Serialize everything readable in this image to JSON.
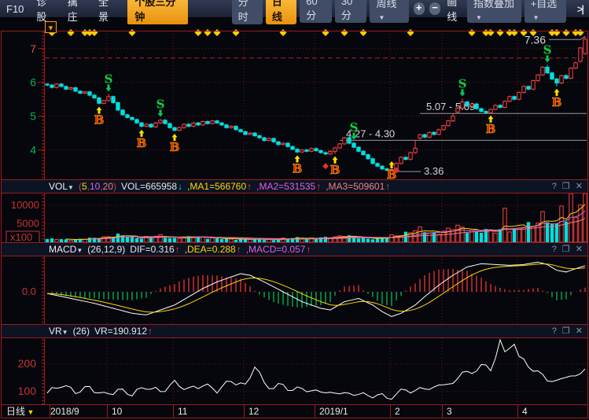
{
  "toolbar": {
    "items_left": [
      "F10",
      "诊股",
      "擒庄",
      "全景"
    ],
    "highlight_button": "个股三分钟",
    "period_buttons": [
      "分时",
      "日线",
      "60分",
      "30分",
      "周线"
    ],
    "active_period": "日线",
    "zoom_buttons": [
      "+",
      "−"
    ],
    "items_right": [
      "画线",
      "指数叠加",
      "+自选"
    ],
    "collapse_icon": ">|"
  },
  "colors": {
    "up": "#ff4242",
    "down": "#00e0e0",
    "ma1": "#ffd700",
    "ma2": "#e060e0",
    "ma3": "#f08080",
    "accent_orange": "#f0a020",
    "grid": "#7a1212",
    "border": "#9b1c1c",
    "axis_red": "#c83232",
    "axis_green": "#00b850",
    "text": "#e8e8e8",
    "dim_red": "#c84040",
    "gray_line": "#999999",
    "signal_buy": "#e03000",
    "signal_buy_edge": "#ffaa00",
    "signal_sell": "#22cc44",
    "diamond": "#ffcc00",
    "white_line": "#ffffff",
    "yellow_line": "#ffd700",
    "hist_up": "#e03030",
    "hist_down": "#00b050"
  },
  "panes": {
    "window_buttons": [
      "?",
      "❐",
      "✕"
    ],
    "vol": {
      "title": "VOL",
      "dropdown": "▼",
      "params_tokens": [
        [
          "(",
          "dim_red"
        ],
        [
          "5",
          "ma1"
        ],
        [
          ",",
          "dim_red"
        ],
        [
          "10",
          "ma2"
        ],
        [
          ",",
          "dim_red"
        ],
        [
          "20",
          "ma3"
        ],
        [
          ")",
          "dim_red"
        ]
      ],
      "fields": [
        {
          "text": "VOL=665958",
          "color": "text",
          "arrow": "down"
        },
        {
          "text": ",MA1=566760",
          "color": "ma1",
          "arrow": "up"
        },
        {
          "text": ",MA2=531535",
          "color": "ma2",
          "arrow": "up"
        },
        {
          "text": ",MA3=509601",
          "color": "ma3",
          "arrow": "up"
        }
      ],
      "y_ticks": [
        "10000",
        "5000"
      ],
      "unit_label": "x100"
    },
    "macd": {
      "title": "MACD",
      "dropdown": "▼",
      "params_tokens": [
        [
          "(26,12,9)",
          "text"
        ]
      ],
      "fields": [
        {
          "text": "DIF=0.316",
          "color": "text",
          "arrow": "up"
        },
        {
          "text": ",DEA=0.288",
          "color": "ma1",
          "arrow": "up"
        },
        {
          "text": ",MACD=0.057",
          "color": "ma2",
          "arrow": "up"
        }
      ],
      "y_ticks": [
        "0.0"
      ]
    },
    "vr": {
      "title": "VR",
      "dropdown": "▼",
      "params_tokens": [
        [
          "(26)",
          "text"
        ]
      ],
      "fields": [
        {
          "text": "VR=190.912",
          "color": "text",
          "arrow": "up"
        }
      ],
      "y_ticks": [
        "200",
        "100"
      ]
    }
  },
  "x_axis": {
    "left_label": "日线",
    "left_arrow": "▼",
    "labels": [
      "2018/9",
      "10",
      "11",
      "12",
      "2019/1",
      "2",
      "3",
      "4"
    ],
    "label_days": [
      0,
      13,
      27,
      42,
      57,
      73,
      84,
      100
    ]
  },
  "chart_data": [
    {
      "type": "candlestick",
      "panel": "main",
      "title": "daily K-line",
      "y_tick_values": [
        7,
        6,
        5,
        4
      ],
      "y_tick_colors": [
        "#e05050",
        "#00b850",
        "#00b850",
        "#00b850"
      ],
      "ylim": [
        3.13,
        7.53
      ],
      "dashed_level": 6.72,
      "closes": [
        5.92,
        5.85,
        5.95,
        5.88,
        5.8,
        5.84,
        5.74,
        5.68,
        5.72,
        5.62,
        5.54,
        5.38,
        5.46,
        5.58,
        5.4,
        5.18,
        5.04,
        4.96,
        4.9,
        4.8,
        4.7,
        4.76,
        4.68,
        4.8,
        4.88,
        4.78,
        4.66,
        4.58,
        4.66,
        4.76,
        4.7,
        4.8,
        4.74,
        4.84,
        4.78,
        4.86,
        4.8,
        4.74,
        4.66,
        4.7,
        4.6,
        4.54,
        4.46,
        4.5,
        4.42,
        4.36,
        4.28,
        4.34,
        4.24,
        4.16,
        4.2,
        4.1,
        4.02,
        3.94,
        4.0,
        3.96,
        4.04,
        3.98,
        3.92,
        3.88,
        3.96,
        4.06,
        4.18,
        4.36,
        4.2,
        4.08,
        3.96,
        3.86,
        3.74,
        3.6,
        3.52,
        3.44,
        3.4,
        3.42,
        3.6,
        3.78,
        3.72,
        3.92,
        4.05,
        4.45,
        4.38,
        4.52,
        4.46,
        4.6,
        4.72,
        4.86,
        5.0,
        5.24,
        5.42,
        5.3,
        5.36,
        5.22,
        5.14,
        5.1,
        5.2,
        5.32,
        5.26,
        5.44,
        5.58,
        5.5,
        5.7,
        5.88,
        5.8,
        6.05,
        6.22,
        6.45,
        6.28,
        6.1,
        5.98,
        6.2,
        6.12,
        6.42,
        6.58,
        7.02,
        7.28
      ],
      "specials": {
        "0": {
          "open": 5.95
        },
        "13": {
          "high": 5.66
        },
        "61": {
          "low": 3.88
        },
        "73": {
          "low": 3.36
        },
        "78": {
          "high": 4.27
        },
        "79": {
          "open": 4.35,
          "low": 4.3
        },
        "86": {
          "high": 5.07
        },
        "87": {
          "open": 5.12,
          "low": 5.09
        },
        "88": {
          "high": 5.52
        },
        "94": {
          "low": 5.09
        },
        "106": {
          "high": 6.52
        },
        "108": {
          "low": 5.88
        },
        "113": {
          "open": 6.62
        },
        "114": {
          "open": 6.85,
          "high": 7.36
        }
      },
      "buy_days": [
        11,
        20,
        27,
        53,
        61,
        73,
        94,
        108
      ],
      "sell_days": [
        13,
        24,
        65,
        88,
        106
      ],
      "buy_label": "B",
      "sell_label": "S",
      "diamond_days": [
        1,
        5,
        8,
        9,
        10,
        18,
        32,
        34,
        36,
        40,
        50,
        59,
        63,
        67,
        77,
        90,
        93,
        94,
        96,
        98,
        99,
        101,
        103,
        107,
        108,
        110,
        112,
        113
      ],
      "red_diamonds": [
        {
          "day": 59,
          "price": 3.52
        },
        {
          "day": 74,
          "price": 3.4
        }
      ],
      "annotations": [
        {
          "type": "high",
          "text": "7.36",
          "day": 114,
          "price": 7.36
        },
        {
          "type": "gap",
          "text": "5.07 - 5.09",
          "price": 5.08,
          "from_day": 80
        },
        {
          "type": "gap",
          "text": "4.27 - 4.30",
          "price": 4.285,
          "from_day": 63
        },
        {
          "type": "low",
          "text": "3.36",
          "price": 3.36,
          "day": 73
        }
      ]
    },
    {
      "type": "bar",
      "panel": "volume",
      "ylabel_unit": "x100",
      "y_tick_values": [
        10000,
        5000
      ],
      "ylim": [
        0,
        13200
      ],
      "ma_windows": [
        5,
        10,
        20
      ],
      "keypoints": [
        [
          0,
          900
        ],
        [
          5,
          700
        ],
        [
          10,
          1100
        ],
        [
          13,
          1600
        ],
        [
          15,
          1900
        ],
        [
          18,
          1400
        ],
        [
          20,
          1200
        ],
        [
          24,
          1700
        ],
        [
          27,
          1100
        ],
        [
          32,
          1500
        ],
        [
          36,
          950
        ],
        [
          42,
          820
        ],
        [
          48,
          700
        ],
        [
          53,
          1250
        ],
        [
          56,
          950
        ],
        [
          61,
          1500
        ],
        [
          63,
          1900
        ],
        [
          65,
          1250
        ],
        [
          70,
          950
        ],
        [
          73,
          1700
        ],
        [
          75,
          2300
        ],
        [
          79,
          3300
        ],
        [
          82,
          2500
        ],
        [
          85,
          3100
        ],
        [
          87,
          4300
        ],
        [
          88,
          3900
        ],
        [
          91,
          2700
        ],
        [
          94,
          3100
        ],
        [
          97,
          3500
        ],
        [
          99,
          2900
        ],
        [
          101,
          4500
        ],
        [
          103,
          5300
        ],
        [
          105,
          6900
        ],
        [
          106,
          5500
        ],
        [
          108,
          4300
        ],
        [
          109,
          6500
        ],
        [
          110,
          6300
        ],
        [
          111,
          8000
        ],
        [
          112,
          7800
        ],
        [
          113,
          9000
        ],
        [
          114,
          12800
        ]
      ],
      "spikes": {
        "97": 9200,
        "109": 9800,
        "111": 13200
      }
    },
    {
      "type": "line+bar",
      "panel": "macd",
      "zero_label": "0.0",
      "ylim": [
        -0.4,
        0.42
      ],
      "dif_keypoints": [
        [
          0,
          -0.02
        ],
        [
          5,
          -0.08
        ],
        [
          10,
          -0.14
        ],
        [
          14,
          -0.2
        ],
        [
          18,
          -0.26
        ],
        [
          21,
          -0.28
        ],
        [
          24,
          -0.22
        ],
        [
          27,
          -0.16
        ],
        [
          30,
          -0.06
        ],
        [
          33,
          0.04
        ],
        [
          36,
          0.12
        ],
        [
          39,
          0.18
        ],
        [
          41,
          0.22
        ],
        [
          43,
          0.2
        ],
        [
          46,
          0.12
        ],
        [
          50,
          0.0
        ],
        [
          54,
          -0.12
        ],
        [
          58,
          -0.2
        ],
        [
          60,
          -0.22
        ],
        [
          63,
          -0.12
        ],
        [
          66,
          -0.08
        ],
        [
          69,
          -0.16
        ],
        [
          71,
          -0.24
        ],
        [
          73,
          -0.3
        ],
        [
          75,
          -0.26
        ],
        [
          78,
          -0.16
        ],
        [
          80,
          -0.06
        ],
        [
          83,
          0.08
        ],
        [
          86,
          0.2
        ],
        [
          89,
          0.3
        ],
        [
          92,
          0.34
        ],
        [
          95,
          0.33
        ],
        [
          98,
          0.32
        ],
        [
          101,
          0.33
        ],
        [
          104,
          0.36
        ],
        [
          106,
          0.33
        ],
        [
          108,
          0.26
        ],
        [
          110,
          0.24
        ],
        [
          112,
          0.28
        ],
        [
          114,
          0.316
        ]
      ],
      "dea_ema_alpha": 0.22
    },
    {
      "type": "line",
      "panel": "vr",
      "y_tick_values": [
        200,
        100
      ],
      "ylim": [
        54,
        294
      ],
      "keypoints": [
        [
          0,
          95
        ],
        [
          3,
          125
        ],
        [
          6,
          100
        ],
        [
          9,
          115
        ],
        [
          12,
          88
        ],
        [
          15,
          105
        ],
        [
          18,
          92
        ],
        [
          21,
          118
        ],
        [
          24,
          100
        ],
        [
          27,
          132
        ],
        [
          30,
          108
        ],
        [
          33,
          125
        ],
        [
          36,
          105
        ],
        [
          39,
          140
        ],
        [
          42,
          120
        ],
        [
          44,
          195
        ],
        [
          46,
          130
        ],
        [
          48,
          112
        ],
        [
          50,
          128
        ],
        [
          52,
          100
        ],
        [
          54,
          118
        ],
        [
          56,
          95
        ],
        [
          58,
          108
        ],
        [
          60,
          88
        ],
        [
          62,
          102
        ],
        [
          64,
          85
        ],
        [
          66,
          98
        ],
        [
          68,
          80
        ],
        [
          70,
          92
        ],
        [
          72,
          75
        ],
        [
          74,
          90
        ],
        [
          76,
          110
        ],
        [
          78,
          98
        ],
        [
          80,
          118
        ],
        [
          82,
          108
        ],
        [
          84,
          135
        ],
        [
          86,
          120
        ],
        [
          88,
          180
        ],
        [
          90,
          158
        ],
        [
          92,
          205
        ],
        [
          94,
          172
        ],
        [
          96,
          290
        ],
        [
          97,
          235
        ],
        [
          99,
          282
        ],
        [
          100,
          225
        ],
        [
          102,
          195
        ],
        [
          104,
          168
        ],
        [
          106,
          148
        ],
        [
          108,
          132
        ],
        [
          110,
          162
        ],
        [
          112,
          148
        ],
        [
          114,
          191
        ]
      ]
    }
  ]
}
